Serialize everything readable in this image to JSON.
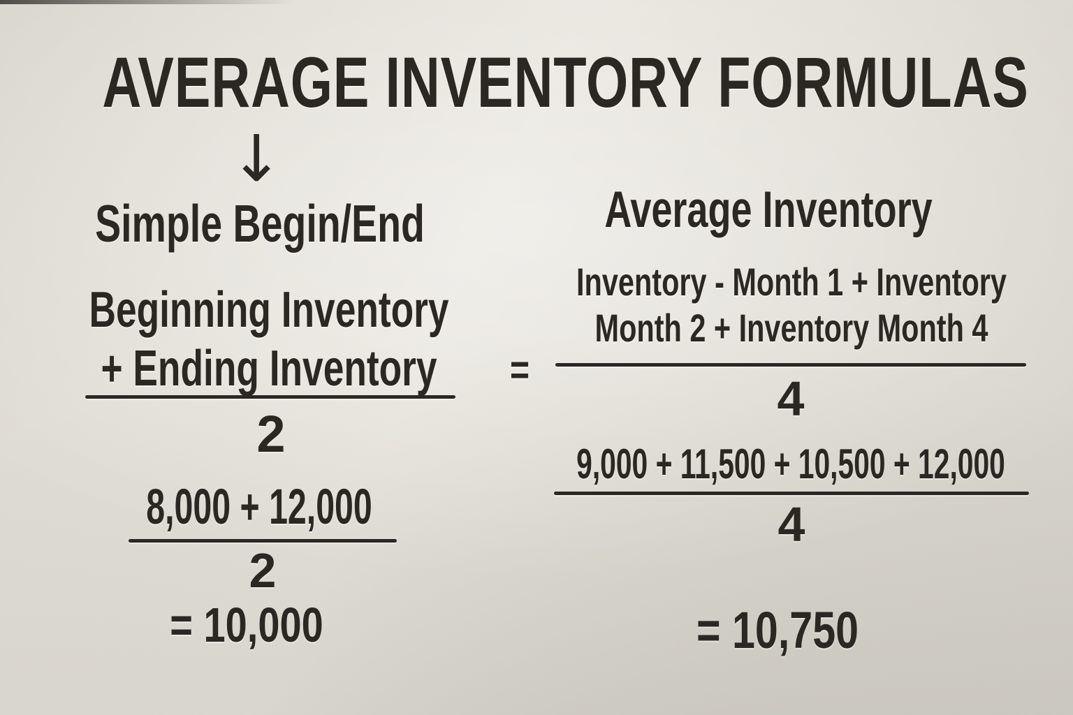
{
  "title": "AVERAGE INVENTORY FORMULAS",
  "arrow": "↓",
  "equals_sign": "=",
  "left_formula": {
    "heading": "Simple Begin/End",
    "definition": {
      "numerator_line1": "Beginning Inventory",
      "numerator_line2": "+ Ending Inventory",
      "denominator": "2"
    },
    "example": {
      "numerator": "8,000 + 12,000",
      "denominator": "2",
      "result": "= 10,000"
    }
  },
  "right_formula": {
    "heading": "Average Inventory",
    "definition": {
      "numerator_line1": "Inventory - Month 1 + Inventory",
      "numerator_line2": "Month 2 + Inventory Month 4",
      "denominator": "4"
    },
    "example": {
      "numerator": "9,000 + 11,500 + 10,500 + 12,000",
      "denominator": "4",
      "result": "= 10,750"
    }
  },
  "colors": {
    "background": "#e6e3db",
    "text": "#2b2823"
  }
}
